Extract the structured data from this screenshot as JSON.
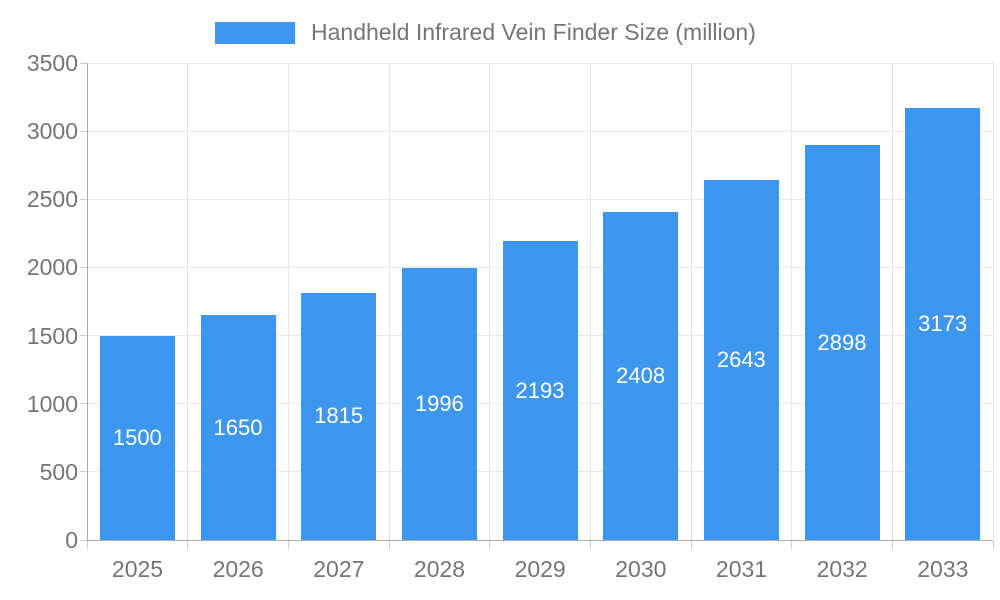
{
  "chart_data": {
    "type": "bar",
    "title": "Handheld Infrared Vein Finder Size (million)",
    "categories": [
      "2025",
      "2026",
      "2027",
      "2028",
      "2029",
      "2030",
      "2031",
      "2032",
      "2033"
    ],
    "values": [
      1500,
      1650,
      1815,
      1996,
      2193,
      2408,
      2643,
      2898,
      3173
    ],
    "series": [
      {
        "name": "Handheld Infrared Vein Finder Size (million)",
        "values": [
          1500,
          1650,
          1815,
          1996,
          2193,
          2408,
          2643,
          2898,
          3173
        ]
      }
    ],
    "xlabel": "",
    "ylabel": "",
    "ylim": [
      0,
      3500
    ],
    "ytick_step": 500,
    "yticks": [
      "0",
      "500",
      "1000",
      "1500",
      "2000",
      "2500",
      "3000",
      "3500"
    ],
    "grid": true,
    "legend_position": "top",
    "value_labels": "inside-center-white"
  },
  "colors": {
    "bar": "#3D97EE",
    "legend_text": "#757575",
    "axis_text": "#757575",
    "gridline": "#e6e6e6",
    "axis_line": "#ababab",
    "tick": "#cccccc",
    "bar_label": "#ffffff",
    "background": "#ffffff"
  }
}
